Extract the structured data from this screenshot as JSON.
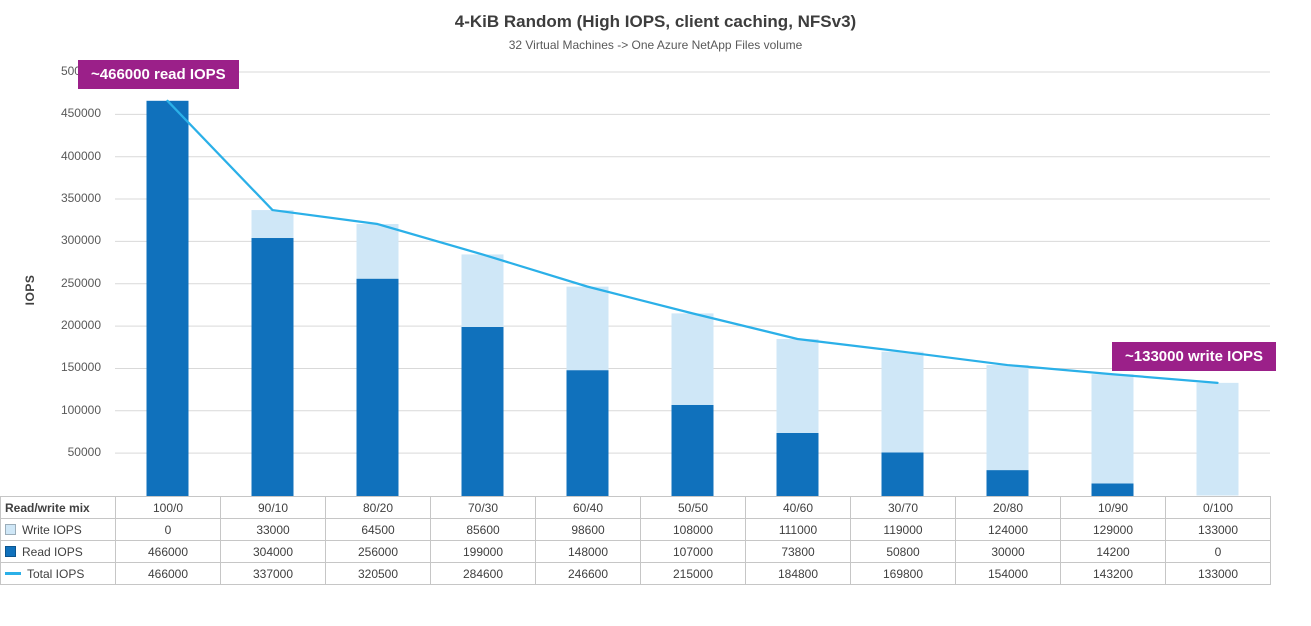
{
  "chart_data": {
    "type": "bar",
    "subtype": "stacked-bar-with-line",
    "title": "4-KiB Random (High IOPS, client caching, NFSv3)",
    "subtitle": "32 Virtual Machines -> One Azure NetApp Files volume",
    "ylabel": "IOPS",
    "ylim": [
      0,
      500000
    ],
    "ytick_step": 50000,
    "grid": true,
    "legend_position": "data-table-left",
    "x_axis_title": "Read/write mix",
    "categories": [
      "100/0",
      "90/10",
      "80/20",
      "70/30",
      "60/40",
      "50/50",
      "40/60",
      "30/70",
      "20/80",
      "10/90",
      "0/100"
    ],
    "series": [
      {
        "name": "Write IOPS",
        "role": "bar-stack-top",
        "color": "#cfe7f7",
        "values": [
          0,
          33000,
          64500,
          85600,
          98600,
          108000,
          111000,
          119000,
          124000,
          129000,
          133000
        ]
      },
      {
        "name": "Read IOPS",
        "role": "bar-stack-bottom",
        "color": "#1071bc",
        "values": [
          466000,
          304000,
          256000,
          199000,
          148000,
          107000,
          73800,
          50800,
          30000,
          14200,
          0
        ]
      },
      {
        "name": "Total IOPS",
        "role": "line",
        "color": "#2bb0e8",
        "values": [
          466000,
          337000,
          320500,
          284600,
          246600,
          215000,
          184800,
          169800,
          154000,
          143200,
          133000
        ]
      }
    ],
    "annotations": [
      {
        "text": "~466000 read IOPS",
        "bg": "#9b2089",
        "text_color": "#ffffff",
        "position": "top-left"
      },
      {
        "text": "~133000 write IOPS",
        "bg": "#9b2089",
        "text_color": "#ffffff",
        "position": "right"
      }
    ],
    "colors": {
      "gridline": "#d9d9d9",
      "axis_text": "#595959",
      "table_border": "#c6c6c6"
    }
  }
}
